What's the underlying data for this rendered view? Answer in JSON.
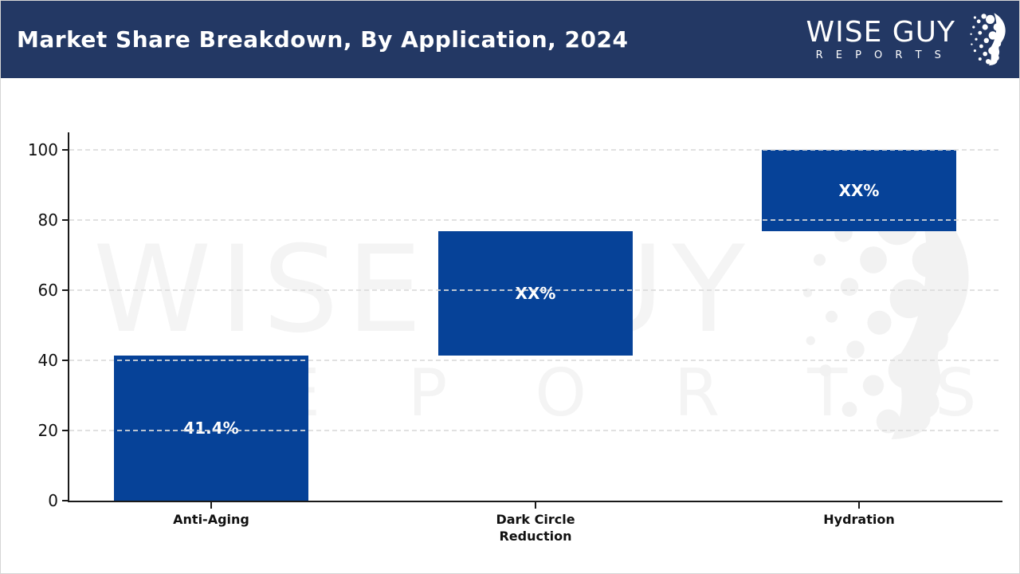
{
  "header": {
    "title": "Market Share Breakdown, By Application, 2024",
    "logo": {
      "name": "WISE GUY",
      "sub": "R E P O R T S"
    }
  },
  "watermark": {
    "big_text": "WISE GUY",
    "sub_text": "R E P O R T S"
  },
  "chart_data": {
    "type": "bar",
    "subtype": "floating-waterfall-segments",
    "title": "Market Share Breakdown, By Application, 2024",
    "categories": [
      "Anti-Aging",
      "Dark Circle\nReduction",
      "Hydration"
    ],
    "bars": [
      {
        "category": "Anti-Aging",
        "start": 0,
        "end": 41.4,
        "value_label": "41.4%"
      },
      {
        "category": "Dark Circle Reduction",
        "start": 41.4,
        "end": 76.8,
        "value_label": "XX%"
      },
      {
        "category": "Hydration",
        "start": 76.8,
        "end": 100,
        "value_label": "XX%"
      }
    ],
    "xlabel": "",
    "ylabel": "",
    "ylim": [
      0,
      100
    ],
    "y_ticks": [
      0,
      20,
      40,
      60,
      80,
      100
    ],
    "grid": true,
    "legend": false,
    "colors": {
      "bar": "#064298",
      "header_bg": "#233864",
      "gridline": "#dcdcdc",
      "axis": "#1a1a1a",
      "value_label_text": "#ffffff",
      "watermark": "#f4f4f4"
    }
  }
}
